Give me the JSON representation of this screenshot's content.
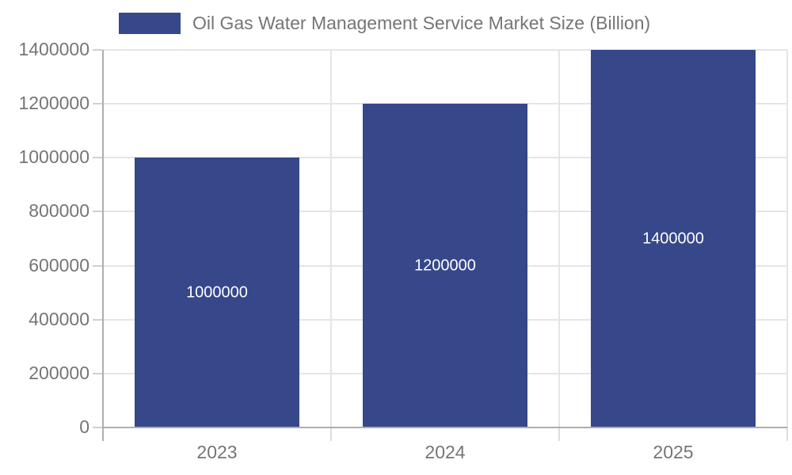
{
  "chart_data": {
    "type": "bar",
    "title": "Oil Gas Water Management Service Market Size (Billion)",
    "categories": [
      "2023",
      "2024",
      "2025"
    ],
    "values": [
      1000000,
      1200000,
      1400000
    ],
    "bar_labels": [
      "1000000",
      "1200000",
      "1400000"
    ],
    "xlabel": "",
    "ylabel": "",
    "ylim": [
      0,
      1400000
    ],
    "ytick_step": 200000,
    "ytick_labels": [
      "0",
      "200000",
      "400000",
      "600000",
      "800000",
      "1000000",
      "1200000",
      "1400000"
    ],
    "legend_position": "top",
    "grid": true,
    "bar_color": "#36478a",
    "bar_label_color": "#ffffff",
    "axis_label_color": "#757575"
  }
}
